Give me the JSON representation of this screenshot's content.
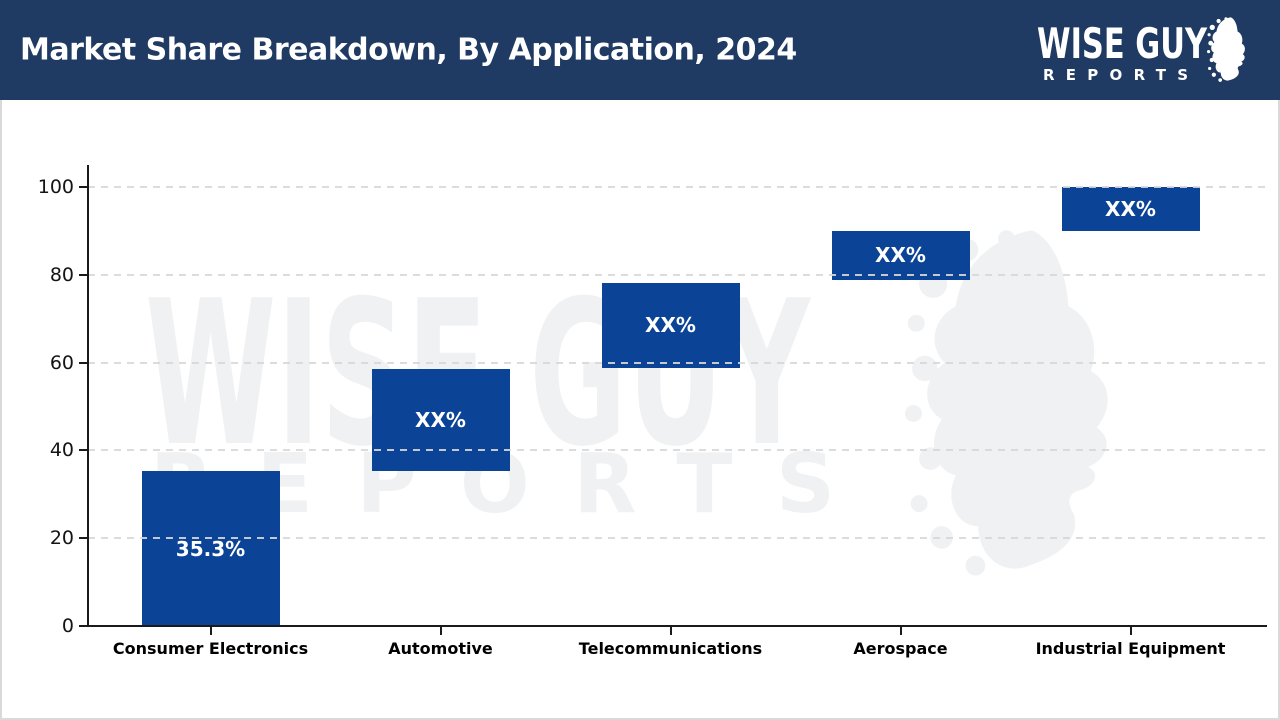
{
  "header": {
    "title": "Market Share Breakdown, By Application, 2024",
    "logo": {
      "line1": "WISE GUY",
      "line2": "REPORTS"
    }
  },
  "watermark": {
    "line1": "WISE GUY",
    "line2": "REPORTS"
  },
  "colors": {
    "header_bg": "#1f3a63",
    "bar": "#0b4396",
    "grid": "#d8d8d8",
    "watermark": "#f0f1f3",
    "bar_label": "#ffffff"
  },
  "chart_data": {
    "type": "bar",
    "subtype": "waterfall",
    "title": "Market Share Breakdown, By Application, 2024",
    "categories": [
      "Consumer Electronics",
      "Automotive",
      "Telecommunications",
      "Aerospace",
      "Industrial Equipment"
    ],
    "series": [
      {
        "name": "Market Share",
        "segments": [
          {
            "category": "Consumer Electronics",
            "start": 0,
            "end": 35.3,
            "label": "35.3%"
          },
          {
            "category": "Automotive",
            "start": 35.3,
            "end": 58.5,
            "label": "XX%"
          },
          {
            "category": "Telecommunications",
            "start": 58.8,
            "end": 78.2,
            "label": "XX%"
          },
          {
            "category": "Aerospace",
            "start": 78.8,
            "end": 90.0,
            "label": "XX%"
          },
          {
            "category": "Industrial Equipment",
            "start": 90.0,
            "end": 100.0,
            "label": "XX%"
          }
        ]
      }
    ],
    "ylim": [
      0,
      100
    ],
    "yticks": [
      0,
      20,
      40,
      60,
      80,
      100
    ],
    "xlabel": "",
    "ylabel": "",
    "grid": "horizontal dashed",
    "legend": "none"
  }
}
